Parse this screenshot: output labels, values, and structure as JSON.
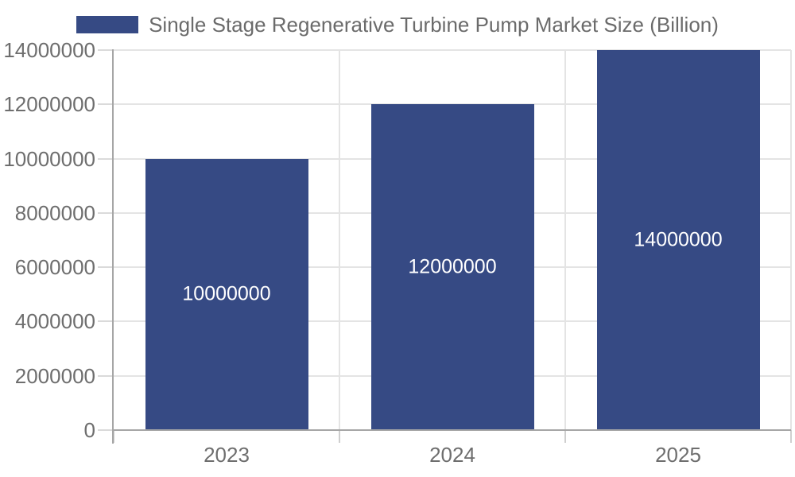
{
  "chart_data": {
    "type": "bar",
    "title": "Single Stage Regenerative Turbine Pump Market Size (Billion)",
    "legend": {
      "label": "Single Stage Regenerative Turbine Pump Market Size (Billion)",
      "position": "top"
    },
    "categories": [
      "2023",
      "2024",
      "2025"
    ],
    "values": [
      10000000,
      12000000,
      14000000
    ],
    "value_labels": [
      "10000000",
      "12000000",
      "14000000"
    ],
    "xlabel": "",
    "ylabel": "",
    "ylim": [
      0,
      14000000
    ],
    "yticks": {
      "values": [
        0,
        2000000,
        4000000,
        6000000,
        8000000,
        10000000,
        12000000,
        14000000
      ],
      "labels": [
        "0",
        "2000000",
        "4000000",
        "6000000",
        "8000000",
        "10000000",
        "12000000",
        "14000000"
      ]
    },
    "grid": true,
    "colors": {
      "bar": "#364a84",
      "value_label": "#ffffff",
      "grid": "#e4e4e4",
      "axis": "#a6a6a6",
      "x_tick": "#cfcfcf",
      "y_tick": "#dadada",
      "tick_label": "#6e6e6e",
      "legend_text": "#6b6b6b",
      "background": "#ffffff"
    }
  }
}
